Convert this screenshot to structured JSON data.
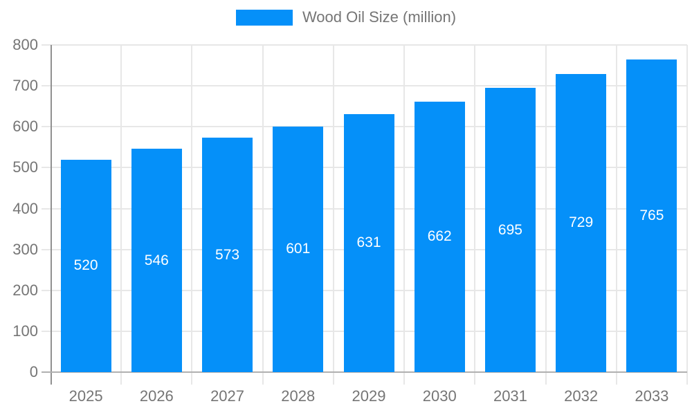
{
  "legend": {
    "label": "Wood Oil Size (million)"
  },
  "chart_data": {
    "type": "bar",
    "title": "Wood Oil Size (million)",
    "categories": [
      "2025",
      "2026",
      "2027",
      "2028",
      "2029",
      "2030",
      "2031",
      "2032",
      "2033"
    ],
    "values": [
      520,
      546,
      573,
      601,
      631,
      662,
      695,
      729,
      765
    ],
    "series_name": "Wood Oil Size (million)",
    "xlabel": "",
    "ylabel": "",
    "ylim": [
      0,
      800
    ],
    "yticks": [
      0,
      100,
      200,
      300,
      400,
      500,
      600,
      700,
      800
    ],
    "grid": true,
    "legend_position": "top",
    "bar_labels_shown": true,
    "colors": {
      "bar": "#0590f9",
      "bar_label": "#ffffff",
      "axis_text": "#757575",
      "gridline": "#e7e7e7",
      "y_axis_line": "#909090",
      "x_axis_line": "#b0b0b0",
      "background": "#ffffff"
    }
  }
}
